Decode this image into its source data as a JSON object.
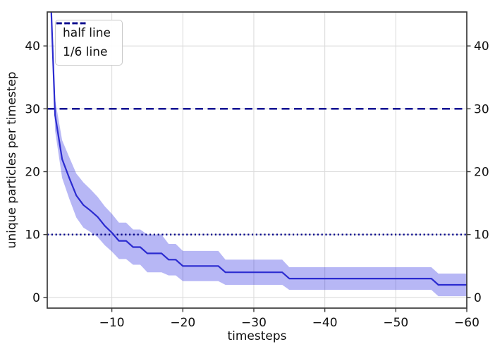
{
  "axes": {
    "xlabel": "timesteps",
    "ylabel": "unique particles per timestep",
    "x_tick_values": [
      -10,
      -20,
      -30,
      -40,
      -50,
      -60
    ],
    "x_tick_labels": [
      "−10",
      "−20",
      "−30",
      "−40",
      "−50",
      "−60"
    ],
    "y_tick_values": [
      0,
      10,
      20,
      30,
      40
    ],
    "y_tick_labels": [
      "0",
      "10",
      "20",
      "30",
      "40"
    ]
  },
  "legend": {
    "items": [
      {
        "label": "half line",
        "line_style": "dashed"
      },
      {
        "label": "1/6 line",
        "line_style": "dotted"
      }
    ]
  },
  "colors": {
    "series_line": "#2b2bd0",
    "band_fill": "#2020e0",
    "band_opacity": 0.32,
    "reference_line": "#00008b",
    "grid": "#dcdcdc",
    "spine": "#3a3a3a",
    "text": "#111111",
    "background": "#ffffff"
  },
  "chart_data": {
    "type": "line",
    "title": "",
    "xlabel": "timesteps",
    "ylabel": "unique particles per timestep",
    "xlim": [
      -0.9,
      -60
    ],
    "ylim": [
      -1.7,
      45.4
    ],
    "x_axis_inverted": true,
    "grid": true,
    "legend_position": "upper left",
    "x": [
      -1,
      -2,
      -3,
      -4,
      -5,
      -6,
      -7,
      -8,
      -9,
      -10,
      -11,
      -12,
      -13,
      -14,
      -15,
      -16,
      -17,
      -18,
      -19,
      -20,
      -21,
      -22,
      -23,
      -24,
      -25,
      -26,
      -27,
      -28,
      -29,
      -30,
      -31,
      -32,
      -33,
      -34,
      -35,
      -36,
      -37,
      -38,
      -39,
      -40,
      -41,
      -42,
      -43,
      -44,
      -45,
      -46,
      -47,
      -48,
      -49,
      -50,
      -51,
      -52,
      -53,
      -54,
      -55,
      -56,
      -57,
      -58,
      -59,
      -60
    ],
    "series": [
      {
        "name": "mean unique particles per timestep",
        "values": [
          60,
          29,
          22,
          19,
          16.2,
          14.7,
          13.8,
          12.8,
          11.4,
          10.3,
          9,
          9,
          8,
          8,
          7,
          7,
          7,
          6,
          6,
          5,
          5,
          5,
          5,
          5,
          5,
          4,
          4,
          4,
          4,
          4,
          4,
          4,
          4,
          4,
          3,
          3,
          3,
          3,
          3,
          3,
          3,
          3,
          3,
          3,
          3,
          3,
          3,
          3,
          3,
          3,
          3,
          3,
          3,
          3,
          3,
          2,
          2,
          2,
          2,
          2
        ]
      },
      {
        "name": "band upper edge",
        "values": [
          60,
          31.5,
          25,
          22.3,
          19.7,
          18.3,
          17.2,
          16,
          14.5,
          13.3,
          11.9,
          11.9,
          10.8,
          10.8,
          10,
          10,
          10,
          8.5,
          8.5,
          7.4,
          7.4,
          7.4,
          7.4,
          7.4,
          7.4,
          6,
          6,
          6,
          6,
          6,
          6,
          6,
          6,
          6,
          4.8,
          4.8,
          4.8,
          4.8,
          4.8,
          4.8,
          4.8,
          4.8,
          4.8,
          4.8,
          4.8,
          4.8,
          4.8,
          4.8,
          4.8,
          4.8,
          4.8,
          4.8,
          4.8,
          4.8,
          4.8,
          3.8,
          3.8,
          3.8,
          3.8,
          3.8
        ]
      },
      {
        "name": "band lower edge",
        "values": [
          60,
          26.5,
          19,
          15.7,
          12.7,
          11.1,
          10.4,
          9.6,
          8.3,
          7.3,
          6.1,
          6.1,
          5.2,
          5.2,
          4,
          4,
          4,
          3.5,
          3.5,
          2.6,
          2.6,
          2.6,
          2.6,
          2.6,
          2.6,
          2,
          2,
          2,
          2,
          2,
          2,
          2,
          2,
          2,
          1.2,
          1.2,
          1.2,
          1.2,
          1.2,
          1.2,
          1.2,
          1.2,
          1.2,
          1.2,
          1.2,
          1.2,
          1.2,
          1.2,
          1.2,
          1.2,
          1.2,
          1.2,
          1.2,
          1.2,
          1.2,
          0.2,
          0.2,
          0.2,
          0.2,
          0.2
        ]
      }
    ],
    "reference_lines": [
      {
        "label": "half line",
        "y": 30,
        "style": "dashed"
      },
      {
        "label": "1/6 line",
        "y": 10,
        "style": "dotted"
      }
    ]
  }
}
